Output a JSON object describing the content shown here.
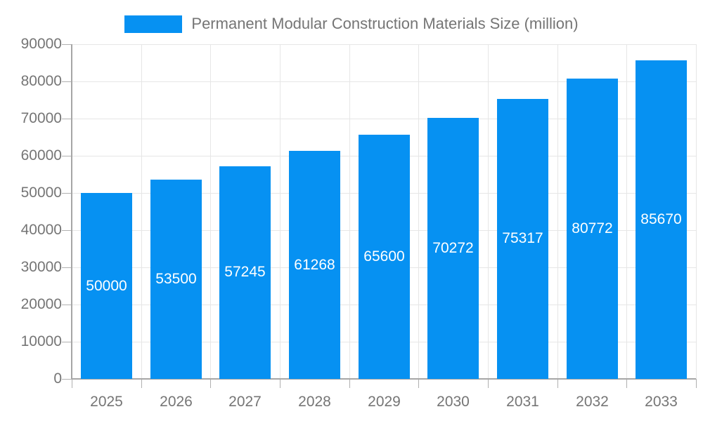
{
  "chart_data": {
    "type": "bar",
    "title": "Permanent Modular Construction Materials Size (million)",
    "legend": [
      "Permanent Modular Construction Materials Size (million)"
    ],
    "legend_position": "top",
    "categories": [
      "2025",
      "2026",
      "2027",
      "2028",
      "2029",
      "2030",
      "2031",
      "2032",
      "2033"
    ],
    "values": [
      50000,
      53500,
      57245,
      61268,
      65600,
      70272,
      75317,
      80772,
      85670
    ],
    "bar_value_labels": [
      "50000",
      "53500",
      "57245",
      "61268",
      "65600",
      "70272",
      "75317",
      "80772",
      "85670"
    ],
    "xlabel": "",
    "ylabel": "",
    "ylim": [
      0,
      90000
    ],
    "y_ticks": [
      0,
      10000,
      20000,
      30000,
      40000,
      50000,
      60000,
      70000,
      80000,
      90000
    ],
    "y_tick_labels": [
      "0",
      "10000",
      "20000",
      "30000",
      "40000",
      "50000",
      "60000",
      "70000",
      "80000",
      "90000"
    ],
    "grid": true,
    "colors": {
      "bar": "#0691f2",
      "bar_label_text": "#ffffff",
      "axis_text": "#757575",
      "gridline": "#e6e6e6",
      "axis_line": "#a6a6a6",
      "tick": "#b0b0b0",
      "background": "#ffffff"
    }
  }
}
